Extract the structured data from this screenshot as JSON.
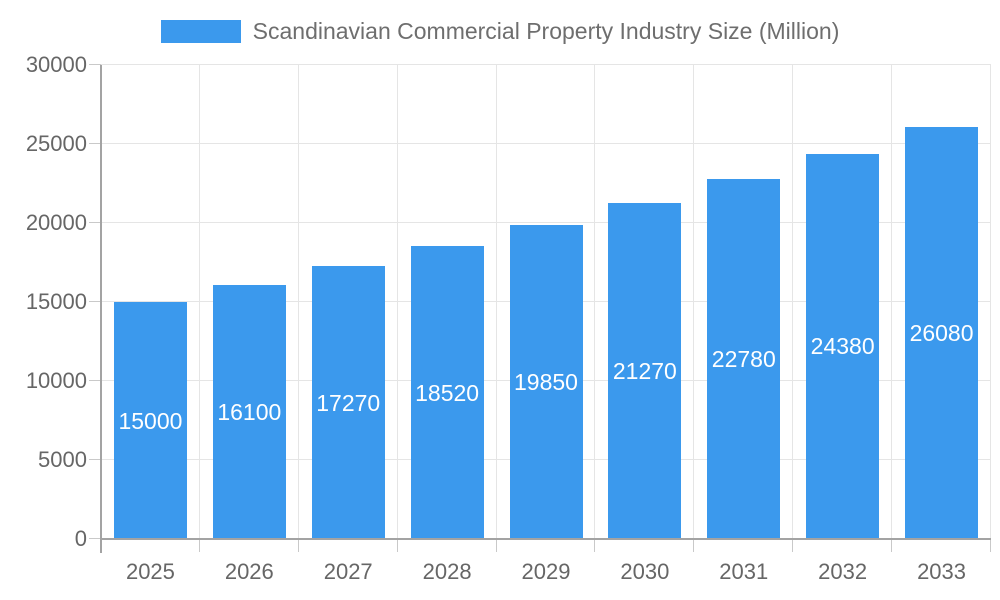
{
  "chart_data": {
    "type": "bar",
    "title": "Scandinavian Commercial Property Industry Size (Million)",
    "categories": [
      "2025",
      "2026",
      "2027",
      "2028",
      "2029",
      "2030",
      "2031",
      "2032",
      "2033"
    ],
    "series": [
      {
        "name": "Scandinavian Commercial Property Industry Size (Million)",
        "values": [
          15000,
          16100,
          17270,
          18520,
          19850,
          21270,
          22780,
          24380,
          26080
        ],
        "color": "#3b99ed"
      }
    ],
    "value_labels_shown": true,
    "xlabel": "",
    "ylabel": "",
    "ylim": [
      0,
      30000
    ],
    "yticks": [
      0,
      5000,
      10000,
      15000,
      20000,
      25000,
      30000
    ],
    "grid": true,
    "legend_position": "top-center",
    "colors": {
      "bar": "#3b99ed",
      "value_label_text": "#ffffff",
      "axis_text": "#666666",
      "legend_text": "#6e6e6e",
      "gridline": "#e5e5e5",
      "tick_mark": "#c9c9c9",
      "axis_line": "#a3a3a3",
      "background": "#ffffff"
    }
  }
}
